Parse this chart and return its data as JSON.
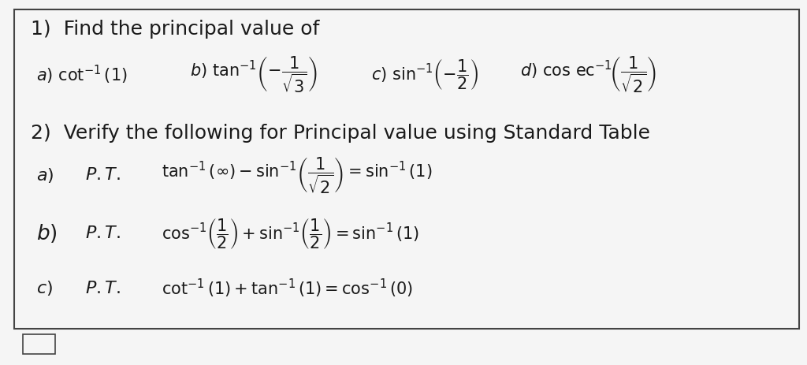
{
  "background_color": "#f5f5f5",
  "border_color": "#444444",
  "text_color": "#1a1a1a",
  "figsize": [
    10.24,
    4.63
  ],
  "dpi": 100,
  "main_fs": 16,
  "header_fs": 18,
  "math_fs": 15
}
